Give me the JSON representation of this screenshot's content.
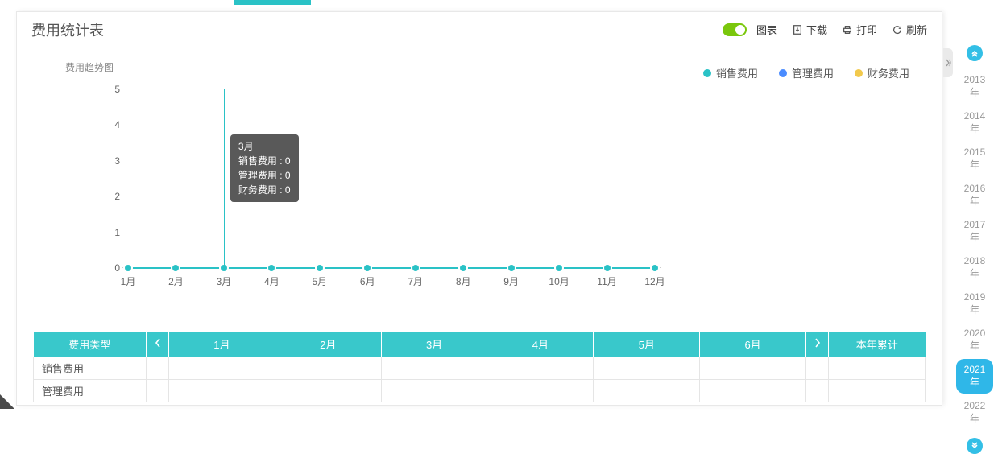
{
  "header": {
    "title": "费用统计表",
    "chart_toggle_label": "图表",
    "download_label": "下载",
    "print_label": "打印",
    "refresh_label": "刷新"
  },
  "chart": {
    "title": "费用趋势图",
    "type": "line",
    "x_labels": [
      "1月",
      "2月",
      "3月",
      "4月",
      "5月",
      "6月",
      "7月",
      "8月",
      "9月",
      "10月",
      "11月",
      "12月"
    ],
    "y_ticks": [
      0,
      1,
      2,
      3,
      4,
      5
    ],
    "ylim": [
      0,
      5
    ],
    "series": [
      {
        "name": "销售费用",
        "color": "#2ac2c6",
        "values": [
          0,
          0,
          0,
          0,
          0,
          0,
          0,
          0,
          0,
          0,
          0,
          0
        ]
      },
      {
        "name": "管理费用",
        "color": "#4a8cff",
        "values": [
          0,
          0,
          0,
          0,
          0,
          0,
          0,
          0,
          0,
          0,
          0,
          0
        ]
      },
      {
        "name": "财务费用",
        "color": "#f2c94c",
        "values": [
          0,
          0,
          0,
          0,
          0,
          0,
          0,
          0,
          0,
          0,
          0,
          0
        ]
      }
    ],
    "hover_index": 2,
    "hover_line_color": "#2ac2c6",
    "marker_color": "#2ac2c6",
    "axis_color": "#cccccc",
    "background_color": "#ffffff",
    "tooltip": {
      "title": "3月",
      "rows": [
        {
          "label": "销售费用",
          "value": "0"
        },
        {
          "label": "管理费用",
          "value": "0"
        },
        {
          "label": "财务费用",
          "value": "0"
        }
      ]
    }
  },
  "table": {
    "type_header": "费用类型",
    "month_headers": [
      "1月",
      "2月",
      "3月",
      "4月",
      "5月",
      "6月"
    ],
    "total_header": "本年累计",
    "rows": [
      {
        "type": "销售费用"
      },
      {
        "type": "管理费用"
      }
    ]
  },
  "year_rail": {
    "years": [
      "2013年",
      "2014年",
      "2015年",
      "2016年",
      "2017年",
      "2018年",
      "2019年",
      "2020年",
      "2021年",
      "2022年"
    ],
    "active": "2021年"
  },
  "colors": {
    "accent": "#2ac2c6",
    "toggle_on": "#7ac70c",
    "table_header_bg": "#39c8cb",
    "rail_button": "#33bfe6"
  }
}
